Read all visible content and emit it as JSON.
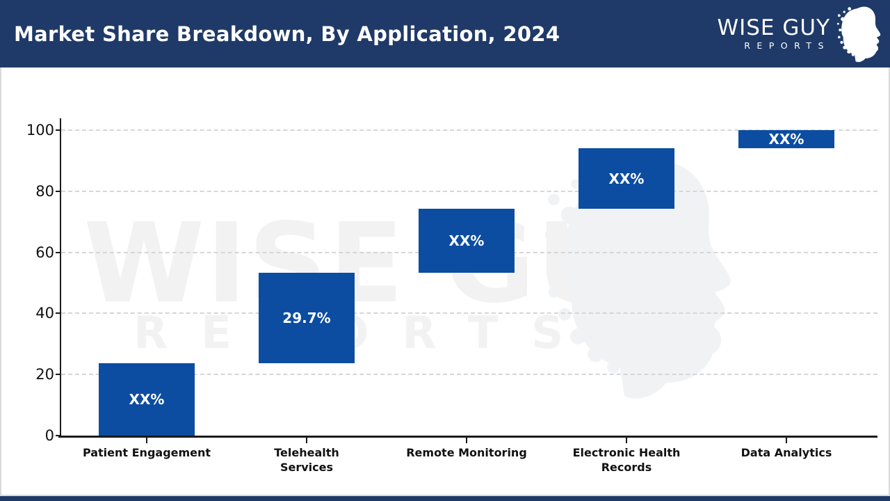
{
  "header": {
    "title": "Market Share Breakdown, By Application, 2024",
    "brand_line1": "WISE GUY",
    "brand_line2": "REPORTS"
  },
  "watermark": {
    "line1": "WISE GUY",
    "line2": "REPORTS"
  },
  "colors": {
    "header_bg": "#1F3A68",
    "footer_bg": "#1F3A68",
    "bar_blue": "#0C4DA2",
    "gridline_gray": "#D6D6D6",
    "watermark_gray": "#F1F2F4",
    "axis_black": "#1A1A1A"
  },
  "chart_data": {
    "type": "bar",
    "subtype": "waterfall",
    "title": "Market Share Breakdown, By Application, 2024",
    "xlabel": "",
    "ylabel": "",
    "categories": [
      "Patient Engagement",
      "Telehealth\nServices",
      "Remote Monitoring",
      "Electronic Health\nRecords",
      "Data Analytics"
    ],
    "segments": [
      {
        "category": "Patient Engagement",
        "start": 0,
        "end": 23.7,
        "value": 23.7,
        "label": "XX%"
      },
      {
        "category": "Telehealth Services",
        "start": 23.7,
        "end": 53.4,
        "value": 29.7,
        "label": "29.7%"
      },
      {
        "category": "Remote Monitoring",
        "start": 53.4,
        "end": 74.2,
        "value": 20.8,
        "label": "XX%"
      },
      {
        "category": "Electronic Health Records",
        "start": 74.2,
        "end": 94.0,
        "value": 19.8,
        "label": "XX%"
      },
      {
        "category": "Data Analytics",
        "start": 94.0,
        "end": 100.0,
        "value": 6.0,
        "label": "XX%"
      }
    ],
    "yticks": [
      0,
      20,
      40,
      60,
      80,
      100
    ],
    "ylim": [
      0,
      104
    ],
    "grid": "horizontal-dashed",
    "legend": "none",
    "bar_color": "#0C4DA2",
    "bar_label_color": "#FFFFFF"
  }
}
